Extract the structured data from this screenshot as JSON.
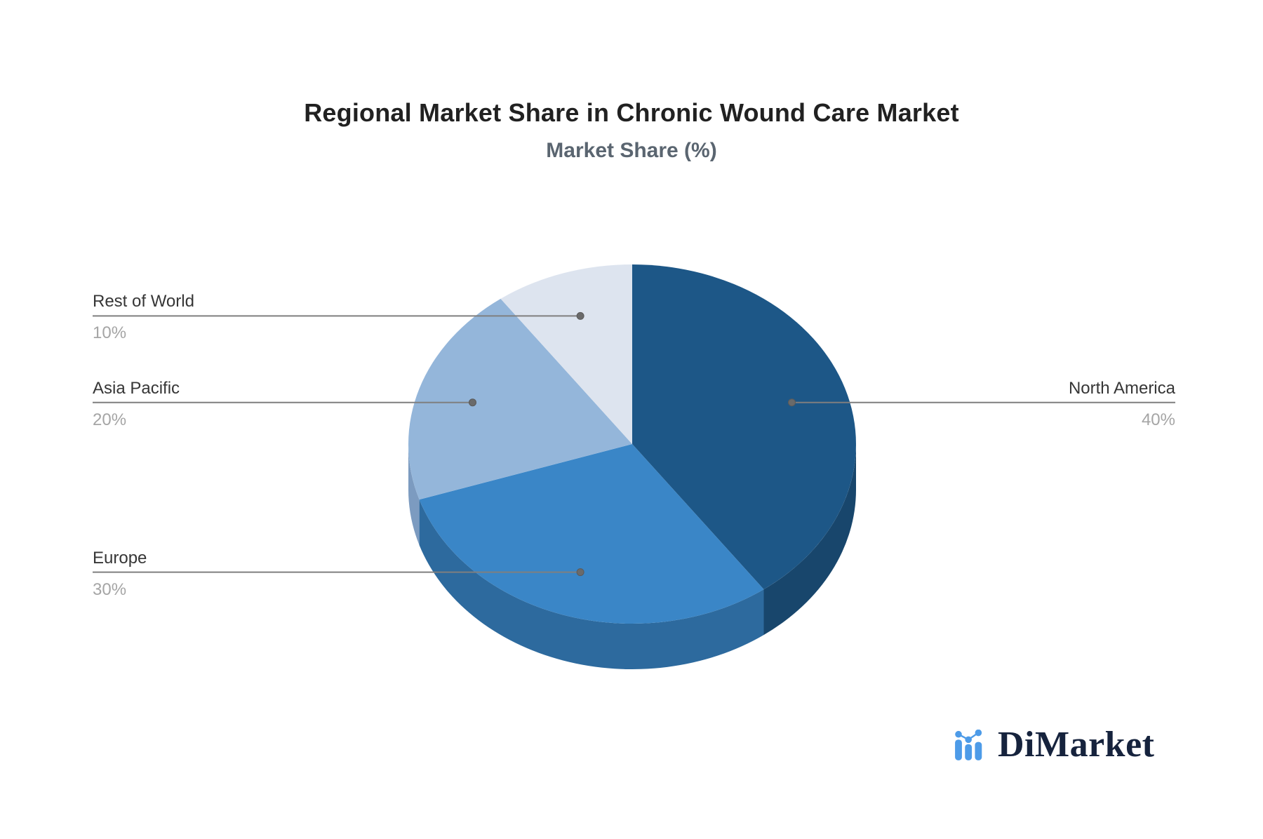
{
  "page": {
    "background": "#FFFFFF"
  },
  "title": "Regional Market Share in Chronic Wound Care Market",
  "subtitle": "Market Share (%)",
  "watermark": {
    "brand": "DiMarket",
    "icon": "bar-trend-logo-icon",
    "icon_color": "#4D9BE8",
    "wordmark_color": "#16233D"
  },
  "chart_data": {
    "type": "pie",
    "style": "3d",
    "title": "Regional Market Share in Chronic Wound Care Market",
    "subtitle": "Market Share (%)",
    "unit": "%",
    "start_angle_deg": 0,
    "direction": "clockwise",
    "legend_position": "callout-labels",
    "slices": [
      {
        "label": "North America",
        "value": 40,
        "display": "40%",
        "color": "#1D5787",
        "side_color": "#18466C",
        "callout_side": "right"
      },
      {
        "label": "Europe",
        "value": 30,
        "display": "30%",
        "color": "#3A86C7",
        "side_color": "#2D6A9E",
        "callout_side": "left"
      },
      {
        "label": "Asia Pacific",
        "value": 20,
        "display": "20%",
        "color": "#94B6DA",
        "side_color": "#7C9BC0",
        "callout_side": "left"
      },
      {
        "label": "Rest of World",
        "value": 10,
        "display": "10%",
        "color": "#DDE4EF",
        "side_color": "#C3CCDD",
        "callout_side": "left"
      }
    ],
    "callout": {
      "line_color": "#7F7F7F",
      "dot_color": "#6A6A6A",
      "label_color": "#363636",
      "value_color": "#A5A5A5"
    }
  }
}
